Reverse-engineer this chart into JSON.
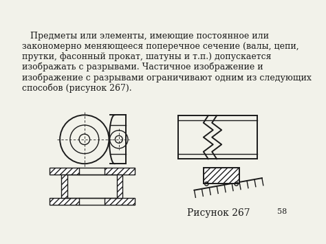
{
  "title_text": "   Предметы или элементы, имеющие постоянное или\nзакономерно меняющееся поперечное сечение (валы, цепи,\nпрутки, фасонный прокат, шатуны и т.п.) допускается\nизображать с разрывами. Частичное изображение и\nизображение с разрывами ограничивают одним из следующих\nспособов (рисунок 267).",
  "caption": "Рисунок 267",
  "page_num": "58",
  "bg_color": "#f2f2ea",
  "line_color": "#1a1a1a",
  "font_size_text": 9.0,
  "font_size_caption": 10
}
